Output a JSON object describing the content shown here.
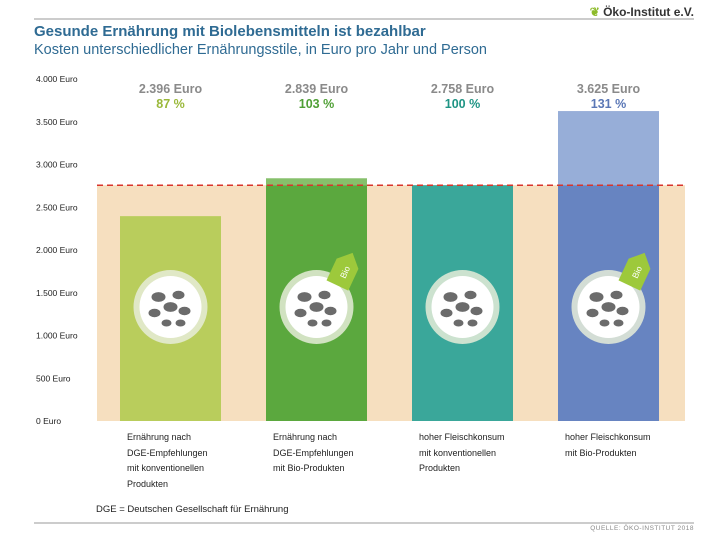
{
  "header": {
    "title": "Gesunde Ernährung mit Biolebensmitteln ist bezahlbar",
    "subtitle": "Kosten unterschiedlicher Ernährungsstile, in Euro pro Jahr und Person",
    "logo": "Öko-Institut e.V."
  },
  "footer": {
    "note": "DGE = Deutschen Gesellschaft für Ernährung",
    "source": "QUELLE: ÖKO-INSTITUT 2018"
  },
  "chart_data": {
    "type": "bar",
    "title": "Gesunde Ernährung mit Biolebensmitteln ist bezahlbar",
    "ylim": [
      0,
      4000
    ],
    "yticks": [
      0,
      500,
      1000,
      1500,
      2000,
      2500,
      3000,
      3500,
      4000
    ],
    "ytick_labels": [
      "0 Euro",
      "500 Euro",
      "1.000 Euro",
      "1.500 Euro",
      "2.000 Euro",
      "2.500 Euro",
      "3.000 Euro",
      "3.500 Euro",
      "4.000 Euro"
    ],
    "reference_line": 2758,
    "categories": [
      "Ernährung nach DGE-Empfehlungen mit konventionellen Produkten",
      "Ernährung nach DGE-Empfehlungen mit Bio-Produkten",
      "hoher Fleischkonsum mit konventionellen Produkten",
      "hoher Fleischkonsum mit Bio-Produkten"
    ],
    "category_lines": [
      [
        "Ernährung nach",
        "DGE-Empfehlungen",
        "mit konventionellen",
        "Produkten"
      ],
      [
        "Ernährung nach",
        "DGE-Empfehlungen",
        "mit Bio-Produkten"
      ],
      [
        "hoher Fleischkonsum",
        "mit konventionellen",
        "Produkten"
      ],
      [
        "hoher Fleischkonsum",
        "mit Bio-Produkten"
      ]
    ],
    "values": [
      2396,
      2839,
      2758,
      3625
    ],
    "value_labels": [
      "2.396 Euro",
      "2.839 Euro",
      "2.758 Euro",
      "3.625 Euro"
    ],
    "percent_labels": [
      "87 %",
      "103 %",
      "100 %",
      "131 %"
    ],
    "bio": [
      false,
      true,
      false,
      true
    ],
    "bio_label": "Bio",
    "colors": [
      "#b9cd5c",
      "#5ba83e",
      "#3aa79a",
      "#6784c1"
    ],
    "top_colors": [
      "#b9cd5c",
      "#86c06b",
      "#3aa79a",
      "#97aed8"
    ],
    "percent_colors": [
      "#9ab83a",
      "#4f9f35",
      "#1e9484",
      "#5a77b6"
    ],
    "background_color": "#f6dfbf",
    "reference_color": "#d9342b"
  }
}
